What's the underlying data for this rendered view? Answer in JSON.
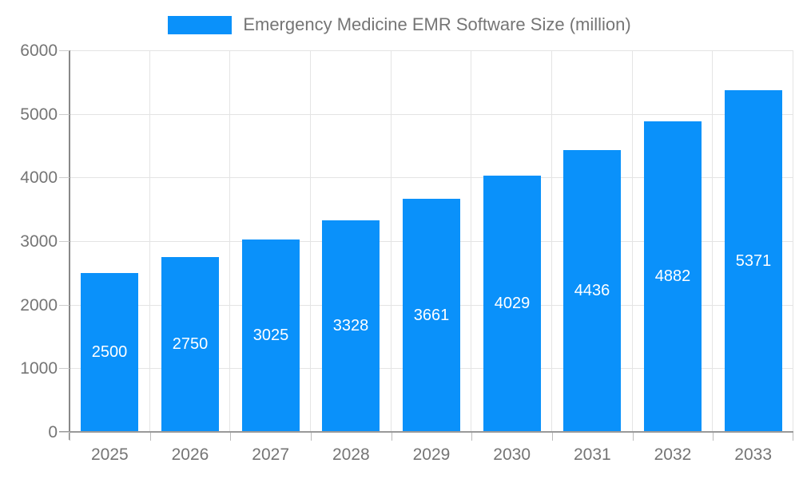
{
  "legend": {
    "label": "Emergency Medicine EMR Software Size (million)"
  },
  "colors": {
    "bar": "#0a91fa",
    "grid": "#e4e4e4",
    "axis": "#999999",
    "tick": "#bbbbbb",
    "text": "#757575",
    "bar_label": "#ffffff"
  },
  "chart_data": {
    "type": "bar",
    "title": "Emergency Medicine EMR Software Size (million)",
    "categories": [
      "2025",
      "2026",
      "2027",
      "2028",
      "2029",
      "2030",
      "2031",
      "2032",
      "2033"
    ],
    "values": [
      2500,
      2750,
      3025,
      3328,
      3661,
      4029,
      4436,
      4882,
      5371
    ],
    "xlabel": "",
    "ylabel": "",
    "ylim": [
      0,
      6000
    ],
    "y_ticks": [
      0,
      1000,
      2000,
      3000,
      4000,
      5000,
      6000
    ],
    "grid": true,
    "legend_position": "top",
    "bar_labels_inside": true
  }
}
